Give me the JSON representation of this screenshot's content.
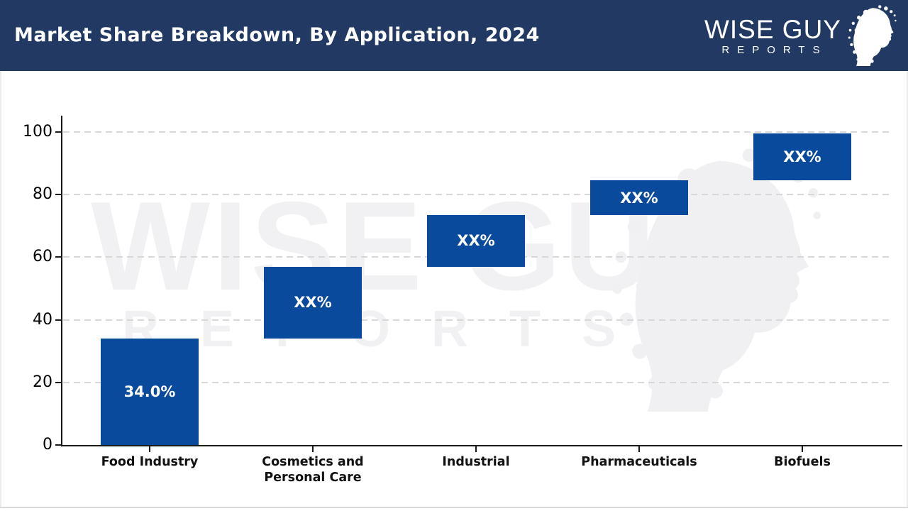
{
  "header": {
    "title": "Market Share Breakdown, By Application, 2024",
    "logo": {
      "primary": "WISE GUY",
      "secondary": "REPORTS"
    }
  },
  "watermark": {
    "primary": "WISE GUY",
    "secondary": "REPORTS"
  },
  "chart_data": {
    "type": "bar",
    "subtype": "waterfall",
    "title": "Market Share Breakdown, By Application, 2024",
    "xlabel": "",
    "ylabel": "",
    "ylim": [
      0,
      100
    ],
    "yticks": [
      0,
      20,
      40,
      60,
      80,
      100
    ],
    "grid": "horizontal-dashed",
    "legend": "none",
    "categories": [
      "Food Industry",
      "Cosmetics and\nPersonal Care",
      "Industrial",
      "Pharmaceuticals",
      "Biofuels"
    ],
    "segments": [
      {
        "category": "Food Industry",
        "start": 0,
        "end": 34,
        "value_label": "34.0%"
      },
      {
        "category": "Cosmetics and Personal Care",
        "start": 34,
        "end": 57,
        "value_label": "XX%"
      },
      {
        "category": "Industrial",
        "start": 57,
        "end": 73.5,
        "value_label": "XX%"
      },
      {
        "category": "Pharmaceuticals",
        "start": 73.5,
        "end": 84.5,
        "value_label": "XX%"
      },
      {
        "category": "Biofuels",
        "start": 84.5,
        "end": 99.5,
        "value_label": "XX%"
      }
    ]
  },
  "colors": {
    "header_bg": "#223A63",
    "bar": "#0A4A9C",
    "bar_label": "#FFFFFF",
    "grid": "#D8D8D8",
    "axis": "#1A1A1A",
    "watermark": "#F1F1F4",
    "title_text": "#FFFFFF"
  }
}
